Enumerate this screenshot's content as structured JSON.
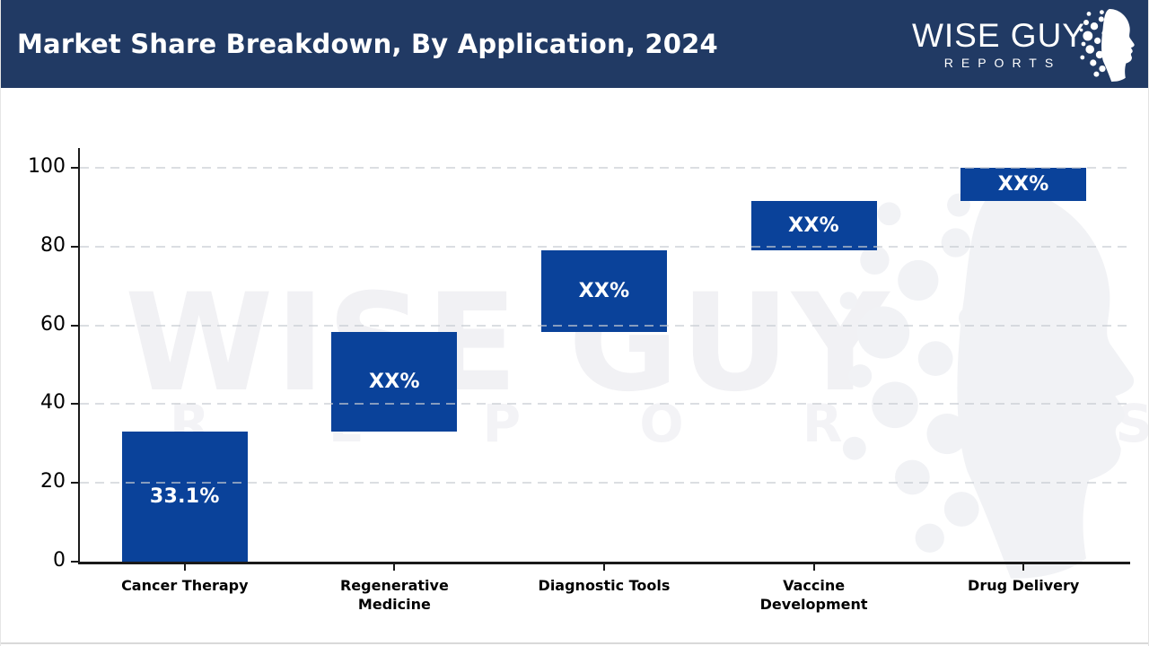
{
  "header": {
    "title": "Market Share Breakdown, By Application, 2024",
    "logo_line1": "WISE GUY",
    "logo_line2": "REPORTS"
  },
  "watermark": {
    "line1": "WISE GUY",
    "line2": "R E P O R T S"
  },
  "chart_data": {
    "type": "bar",
    "subtype": "waterfall",
    "title": "Market Share Breakdown, By Application, 2024",
    "categories": [
      "Cancer Therapy",
      "Regenerative Medicine",
      "Diagnostic Tools",
      "Vaccine Development",
      "Drug Delivery"
    ],
    "category_label_lines": [
      [
        "Cancer Therapy"
      ],
      [
        "Regenerative",
        "Medicine"
      ],
      [
        "Diagnostic Tools"
      ],
      [
        "Vaccine",
        "Development"
      ],
      [
        "Drug Delivery"
      ]
    ],
    "segments": [
      {
        "category": "Cancer Therapy",
        "start": 0,
        "end": 33.1,
        "label": "33.1%"
      },
      {
        "category": "Regenerative Medicine",
        "start": 33.1,
        "end": 58.2,
        "label": "XX%"
      },
      {
        "category": "Diagnostic Tools",
        "start": 58.2,
        "end": 79.1,
        "label": "XX%"
      },
      {
        "category": "Vaccine Development",
        "start": 79.1,
        "end": 91.5,
        "label": "XX%"
      },
      {
        "category": "Drug Delivery",
        "start": 91.5,
        "end": 100,
        "label": "XX%"
      }
    ],
    "yticks": [
      0,
      20,
      40,
      60,
      80,
      100
    ],
    "ylim": [
      0,
      105
    ],
    "grid": {
      "visible": true,
      "style": "dashed",
      "drawn_over_bars": true
    },
    "legend": "none",
    "colors": {
      "bar": "#0a429a",
      "bar_label": "#ffffff",
      "axis": "#1a1a1a",
      "gridline": "#d9dce1",
      "header_bg": "#213a64",
      "header_text": "#ffffff",
      "watermark": "#f1f1f4"
    }
  }
}
